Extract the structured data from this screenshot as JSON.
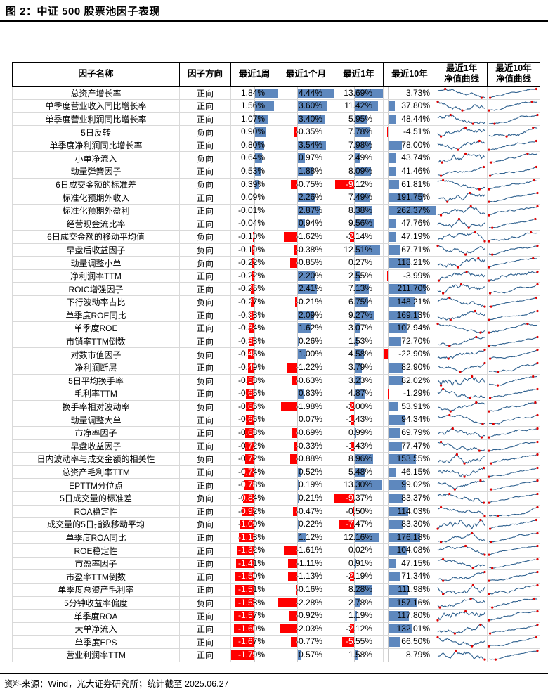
{
  "page": {
    "title": "图 2：中证 500 股票池因子表现",
    "source_note": "资料来源：Wind，光大证券研究所；统计截至 2025.06.27"
  },
  "colors": {
    "bar_positive": "#5e88be",
    "bar_negative": "#ff0000",
    "spark_line": "#2f618f",
    "spark_marker": "#e00000",
    "grid_line": "#d9d9d9",
    "header_border": "#000000"
  },
  "table": {
    "headers": {
      "name": "因子名称",
      "direction": "因子方向",
      "week": "最近1周",
      "month": "最近1个月",
      "year": "最近1年",
      "ten_year": "最近10年",
      "spark_year_line1": "最近1年",
      "spark_year_line2": "净值曲线",
      "spark_ten_year_line1": "最近10年",
      "spark_ten_year_line2": "净值曲线"
    }
  },
  "chart_data": {
    "type": "table",
    "columns": [
      "因子名称",
      "因子方向",
      "最近1周",
      "最近1个月",
      "最近1年",
      "最近10年",
      "最近1年净值曲线",
      "最近10年净值曲线"
    ],
    "value_unit": "%",
    "rows": [
      [
        "总资产增长率",
        "正向",
        1.84,
        4.44,
        13.69,
        3.73
      ],
      [
        "单季度营业收入同比增长率",
        "正向",
        1.56,
        3.6,
        11.42,
        37.8
      ],
      [
        "单季度营业利润同比增长率",
        "正向",
        1.07,
        3.4,
        5.95,
        48.44
      ],
      [
        "5日反转",
        "负向",
        0.9,
        -0.35,
        7.78,
        -4.51
      ],
      [
        "单季度净利润同比增长率",
        "正向",
        0.8,
        3.54,
        7.98,
        78.0
      ],
      [
        "小单净流入",
        "负向",
        0.64,
        0.97,
        2.49,
        43.74
      ],
      [
        "动量弹簧因子",
        "正向",
        0.53,
        1.88,
        8.09,
        41.46
      ],
      [
        "6日成交金额的标准差",
        "负向",
        0.39,
        -0.75,
        -9.12,
        61.81
      ],
      [
        "标准化预期外收入",
        "正向",
        0.09,
        2.26,
        7.49,
        191.75
      ],
      [
        "标准化预期外盈利",
        "正向",
        -0.01,
        2.87,
        8.38,
        262.37
      ],
      [
        "经营现金流比率",
        "正向",
        -0.04,
        0.94,
        9.56,
        47.76
      ],
      [
        "6日成交金额的移动平均值",
        "负向",
        -0.1,
        -1.62,
        -2.14,
        47.19
      ],
      [
        "早盘后收益因子",
        "负向",
        -0.19,
        -0.38,
        12.51,
        67.71
      ],
      [
        "动量调整小单",
        "负向",
        -0.22,
        -0.85,
        0.27,
        118.21
      ],
      [
        "净利润率TTM",
        "正向",
        -0.22,
        2.2,
        2.55,
        -3.99
      ],
      [
        "ROIC增强因子",
        "正向",
        -0.25,
        2.41,
        7.13,
        211.7
      ],
      [
        "下行波动率占比",
        "负向",
        -0.27,
        -0.21,
        6.75,
        148.21
      ],
      [
        "单季度ROE同比",
        "正向",
        -0.33,
        2.09,
        9.27,
        169.13
      ],
      [
        "单季度ROE",
        "正向",
        -0.34,
        1.62,
        3.07,
        107.94
      ],
      [
        "市销率TTM倒数",
        "正向",
        -0.38,
        0.26,
        1.53,
        72.7
      ],
      [
        "对数市值因子",
        "负向",
        -0.45,
        1.0,
        4.58,
        -22.9
      ],
      [
        "净利润断层",
        "正向",
        -0.49,
        -1.22,
        3.79,
        82.9
      ],
      [
        "5日平均换手率",
        "负向",
        -0.58,
        -0.63,
        3.23,
        82.02
      ],
      [
        "毛利率TTM",
        "正向",
        -0.65,
        0.83,
        4.87,
        -1.29
      ],
      [
        "换手率相对波动率",
        "负向",
        -0.66,
        -1.98,
        -2.0,
        53.91
      ],
      [
        "动量调整大单",
        "正向",
        -0.66,
        0.07,
        -1.43,
        94.34
      ],
      [
        "市净率因子",
        "正向",
        -0.68,
        -0.69,
        0.99,
        69.79
      ],
      [
        "早盘收益因子",
        "正向",
        -0.72,
        -0.33,
        -1.43,
        77.47
      ],
      [
        "日内波动率与成交金额的相关性",
        "负向",
        -0.72,
        -0.88,
        8.96,
        153.55
      ],
      [
        "总资产毛利率TTM",
        "正向",
        -0.74,
        0.52,
        5.48,
        46.15
      ],
      [
        "EPTTM分位点",
        "正向",
        -0.78,
        0.19,
        13.3,
        99.02
      ],
      [
        "5日成交量的标准差",
        "负向",
        -0.84,
        0.21,
        -9.37,
        83.37
      ],
      [
        "ROA稳定性",
        "正向",
        -0.92,
        -0.47,
        -0.5,
        114.03
      ],
      [
        "成交量的5日指数移动平均",
        "负向",
        -1.09,
        0.22,
        -7.47,
        83.3
      ],
      [
        "单季度ROA同比",
        "正向",
        -1.18,
        1.12,
        12.16,
        176.18
      ],
      [
        "ROE稳定性",
        "正向",
        -1.32,
        -1.61,
        0.02,
        104.08
      ],
      [
        "市盈率因子",
        "正向",
        -1.41,
        -1.11,
        0.91,
        47.15
      ],
      [
        "市盈率TTM倒数",
        "正向",
        -1.5,
        -1.13,
        -2.19,
        71.34
      ],
      [
        "单季度总资产毛利率",
        "正向",
        -1.51,
        -0.16,
        8.28,
        111.98
      ],
      [
        "5分钟收益率偏度",
        "负向",
        -1.53,
        -2.28,
        2.78,
        157.16
      ],
      [
        "单季度ROA",
        "正向",
        -1.57,
        -0.92,
        1.19,
        117.8
      ],
      [
        "大单净流入",
        "正向",
        -1.6,
        -2.03,
        -2.12,
        132.01
      ],
      [
        "单季度EPS",
        "正向",
        -1.67,
        -0.77,
        -5.55,
        66.5
      ],
      [
        "营业利润率TTM",
        "正向",
        -1.79,
        0.57,
        1.58,
        8.79
      ]
    ]
  }
}
